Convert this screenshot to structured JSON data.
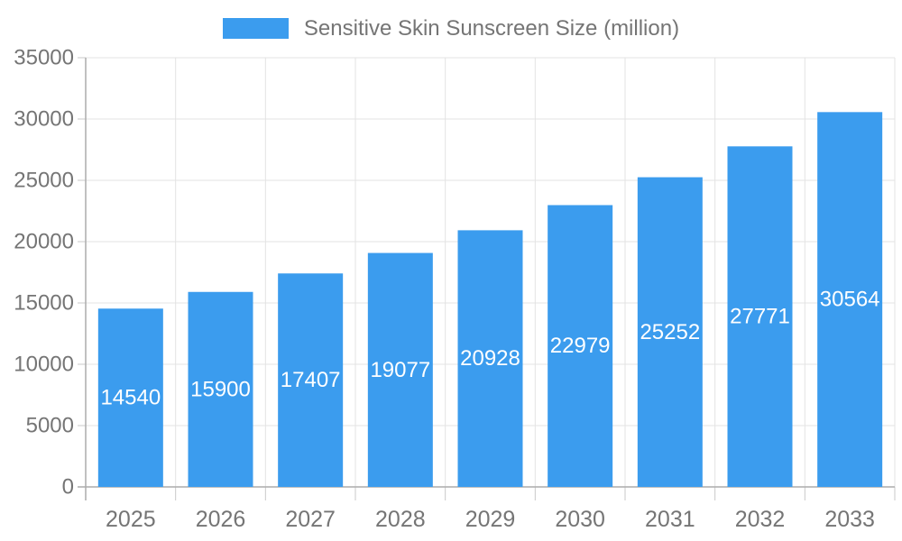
{
  "chart_data": {
    "type": "bar",
    "title": "",
    "legend": "Sensitive Skin Sunscreen Size (million)",
    "legend_position": "top",
    "categories": [
      "2025",
      "2026",
      "2027",
      "2028",
      "2029",
      "2030",
      "2031",
      "2032",
      "2033"
    ],
    "series": [
      {
        "name": "Sensitive Skin Sunscreen Size (million)",
        "values": [
          14540,
          15900,
          17407,
          19077,
          20928,
          22979,
          25252,
          27771,
          30564
        ],
        "color": "#3B9CEE"
      }
    ],
    "xlabel": "",
    "ylabel": "",
    "ylim": [
      0,
      35000
    ],
    "ytick_step": 5000,
    "yticks": [
      0,
      5000,
      10000,
      15000,
      20000,
      25000,
      30000,
      35000
    ],
    "grid": true,
    "bar_labels": true,
    "bar_label_color": "#FFFFFF"
  },
  "colors": {
    "bar": "#3B9CEE",
    "axis_text": "#757575",
    "grid_line": "#E3E3E3",
    "axis_line": "#ACACAC",
    "tick_mark": "#C9C9C9",
    "background": "#FFFFFF"
  }
}
